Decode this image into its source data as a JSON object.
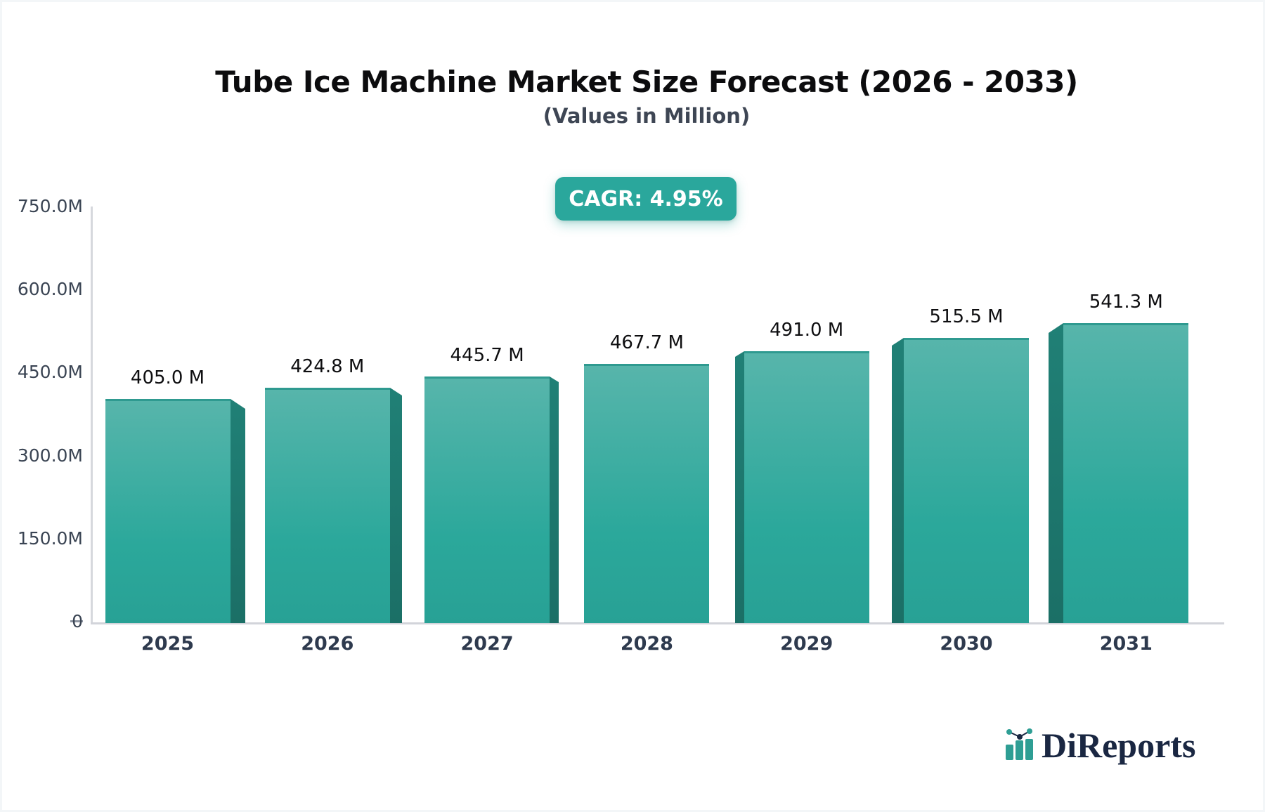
{
  "chart_data": {
    "type": "bar",
    "title": "Tube Ice Machine Market Size Forecast (2026 - 2033)",
    "subtitle": "(Values in Million)",
    "cagr_label": "CAGR: 4.95%",
    "categories": [
      "2025",
      "2026",
      "2027",
      "2028",
      "2029",
      "2030",
      "2031"
    ],
    "values": [
      405.0,
      424.8,
      445.7,
      467.7,
      491.0,
      515.5,
      541.3
    ],
    "bar_labels": [
      "405.0 M",
      "424.8 M",
      "445.7 M",
      "467.7 M",
      "491.0 M",
      "515.5 M",
      "541.3 M"
    ],
    "unit": "Million",
    "ylim": [
      0,
      750
    ],
    "yticks": [
      {
        "value": 750,
        "label": "750.0M"
      },
      {
        "value": 600,
        "label": "600.0M"
      },
      {
        "value": 450,
        "label": "450.0M"
      },
      {
        "value": 300,
        "label": "300.0M"
      },
      {
        "value": 150,
        "label": "150.0M"
      },
      {
        "value": 0,
        "label": "0"
      }
    ],
    "grid": false,
    "legend": false
  },
  "colors": {
    "bar_gradient_top": "#57b5ab",
    "bar_gradient_bottom": "#28a195",
    "bar_side_face": "#1e7b71",
    "bar_top_edge": "#2f9a90",
    "badge_background": "#2aa79c",
    "badge_text": "#ffffff",
    "axis_line": "#d6d8dd",
    "ytick_text": "#3a4453",
    "xtick_text": "#2e3a4e",
    "value_label_text": "#0e0e10",
    "title_text": "#0c0c0e",
    "subtitle_text": "#3e4654",
    "logo_navy": "#1a2742",
    "logo_teal": "#2e9e94"
  },
  "logo": {
    "text": "DiReports"
  }
}
